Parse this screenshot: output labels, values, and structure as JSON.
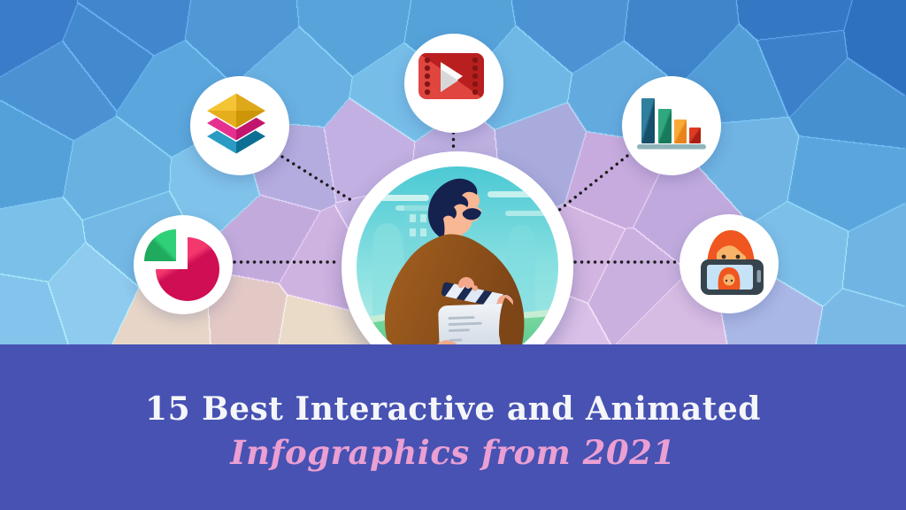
{
  "theme": {
    "banner_bg": "#4752b3",
    "title1_color": "#f5f6f9",
    "title2_color": "#eb9fd2",
    "connector_color": "#1b1b1b",
    "bubble_bg": "#ffffff"
  },
  "banner": {
    "title_line1": "15 Best Interactive and Animated",
    "title_line2": "Infographics from 2021"
  },
  "hub": {
    "icon": "presenter-with-clapperboard-illustration",
    "scene_colors": {
      "sky": "#4cc9d4",
      "ground": "#54c689",
      "robe": "#9a5a23",
      "hair": "#16224e",
      "skin": "#f8b795",
      "clapper": "#1c2950",
      "slate": "#dfe6ee"
    }
  },
  "spokes": [
    {
      "icon": "layers-icon",
      "position": "upper-left",
      "colors": [
        "#f2c433",
        "#e5308f",
        "#2a9cc4"
      ]
    },
    {
      "icon": "video-player-icon",
      "position": "top",
      "colors": [
        "#e0453f",
        "#b91f1f",
        "#ffffff"
      ]
    },
    {
      "icon": "bar-chart-icon",
      "position": "upper-right",
      "colors": [
        "#2f7f9e",
        "#2aa078",
        "#f5a12f",
        "#d7351f"
      ]
    },
    {
      "icon": "pie-chart-icon",
      "position": "left",
      "colors": [
        "#ee2b62",
        "#2fd077"
      ]
    },
    {
      "icon": "selfie-camera-icon",
      "position": "right",
      "colors": [
        "#f0561f",
        "#36444d"
      ]
    }
  ],
  "connector_style": "dotted"
}
